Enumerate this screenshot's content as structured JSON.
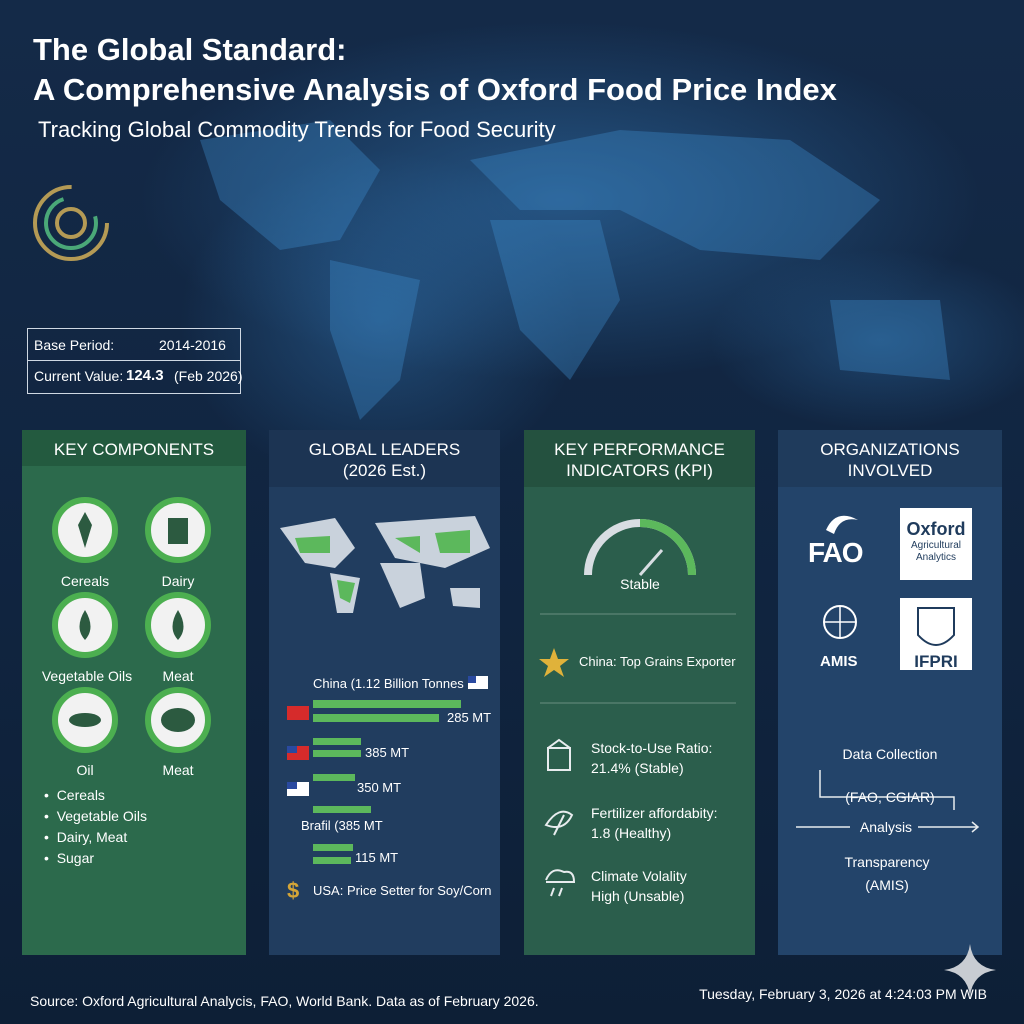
{
  "header": {
    "title_lines": [
      "The Global Standard:",
      "A Comprehensive Analysis of Oxford Food Price Index"
    ],
    "subtitle": "Tracking Global Commodity Trends for Food Security"
  },
  "info_box": {
    "base_label": "Base Period:",
    "base_value": "2014-2016",
    "current_label": "Current Value:",
    "current_value": "124.3",
    "current_date": "(Feb 2026)"
  },
  "key_components": {
    "title": "KEY COMPONENTS",
    "icon_labels": [
      "Cereals",
      "Dairy",
      "Vegetable Oils",
      "Meat",
      "Oil",
      "Meat"
    ],
    "list": [
      "Cereals",
      "Vegetable Oils",
      "Dairy, Meat",
      "Sugar"
    ]
  },
  "global_leaders": {
    "title_lines": [
      "GLOBAL LEADERS",
      "(2026 Est.)"
    ],
    "headline": "China (1.12 Billion Tonnes",
    "bar_labels": [
      "285 MT",
      "385 MT",
      "350 MT",
      "Brafil (385 MT",
      "115 MT"
    ],
    "note": "USA: Price Setter for Soy/Corn"
  },
  "kpi": {
    "title_lines": [
      "KEY PERFORMANCE",
      "INDICATORS (KPI)"
    ],
    "gauge_label": "Stable",
    "highlight": "China: Top Grains Exporter",
    "items": [
      {
        "label": "Stock-to-Use Ratio:",
        "value": "21.4% (Stable)"
      },
      {
        "label": "Fertilizer affordabity:",
        "value": "1.8 (Healthy)"
      },
      {
        "label": "Climate Volality",
        "value": "High (Unsable)"
      }
    ]
  },
  "organizations": {
    "title_lines": [
      "ORGANIZATIONS",
      "INVOLVED"
    ],
    "logos": {
      "fao": "FAO",
      "oxford": [
        "Oxford",
        "Agricultural",
        "Analytics"
      ],
      "amis": "AMIS",
      "ifpri": "IFPRI"
    },
    "flow": [
      "Data Collection",
      "(FAO, CGIAR)",
      "Analysis",
      "Transparency",
      "(AMIS)"
    ]
  },
  "footer": {
    "source": "Source: Oxford Agricultural Analycis, FAO, World Bank. Data as of February 2026.",
    "timestamp": "Tuesday, February 3, 2026 at 4:24:03 PM WIB"
  }
}
